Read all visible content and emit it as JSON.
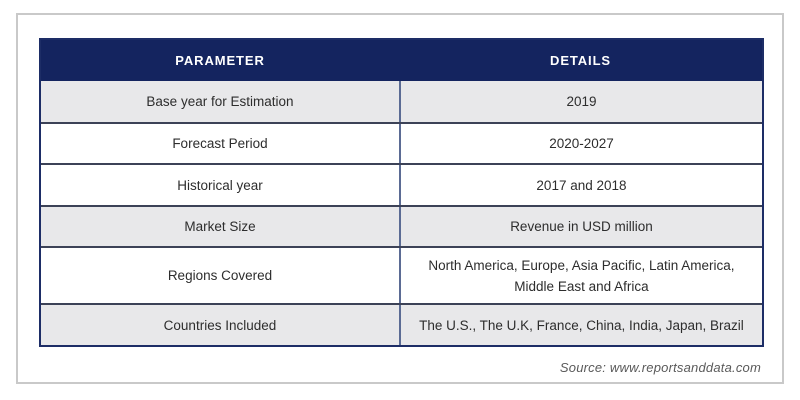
{
  "table": {
    "headers": [
      "PARAMETER",
      "DETAILS"
    ],
    "rows": [
      {
        "parameter": "Base year for Estimation",
        "details": "2019"
      },
      {
        "parameter": "Forecast Period",
        "details": "2020-2027"
      },
      {
        "parameter": "Historical year",
        "details": "2017 and 2018"
      },
      {
        "parameter": "Market Size",
        "details": "Revenue in USD million"
      },
      {
        "parameter": "Regions Covered",
        "details": "North America, Europe, Asia Pacific, Latin America, Middle East and Africa"
      },
      {
        "parameter": "Countries Included",
        "details": "The U.S., The U.K, France, China, India, Japan, Brazil"
      }
    ]
  },
  "source": {
    "label": "Source: www.reportsanddata.com"
  },
  "colors": {
    "header_bg": "#14245f",
    "header_text": "#ffffff",
    "shaded_row": "#e8e8ea",
    "separator": "#3c4257",
    "divider": "#5b6b94",
    "outer_border": "#1d2d66",
    "card_border": "#c9c9c9",
    "cell_text": "#2d2d2d",
    "source_text": "#5a5a5a"
  }
}
